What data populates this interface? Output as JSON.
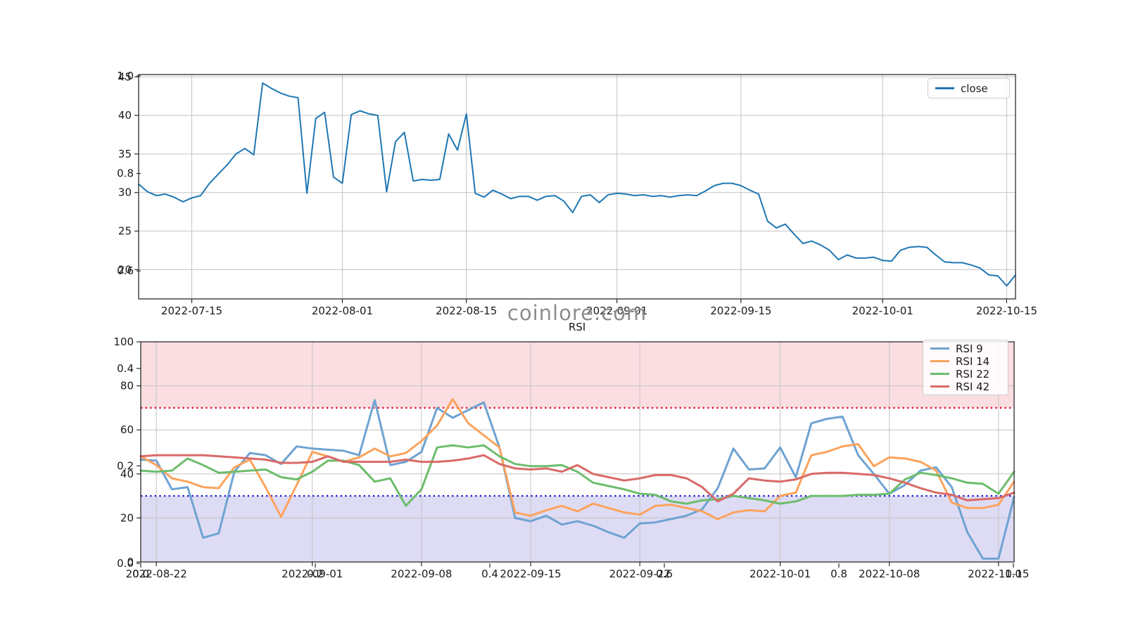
{
  "watermark": {
    "text": "coinlore.com"
  },
  "hidden_axes": {
    "x_tick_labels": [
      "0.0",
      "0.2",
      "0.4",
      "0.6",
      "0.8",
      "1.0"
    ],
    "y_tick_labels": [
      "1.0",
      "0.8",
      "0.6",
      "0.4",
      "0.2",
      "0.0"
    ]
  },
  "chart_data": [
    {
      "type": "line",
      "title": "",
      "xlabel": "",
      "ylabel": "",
      "grid": true,
      "legend_position": "upper right",
      "x_start_date": "2022-07-09",
      "x_tick_labels": [
        "2022-07-15",
        "2022-08-01",
        "2022-08-15",
        "2022-09-01",
        "2022-09-15",
        "2022-10-01",
        "2022-10-15"
      ],
      "y_tick_labels": [
        45,
        40,
        35,
        30,
        25,
        20
      ],
      "ylim": [
        16.2,
        45.3
      ],
      "series": [
        {
          "name": "close",
          "color": "#1f77b4",
          "values": [
            31.1,
            30.1,
            29.6,
            29.8,
            29.4,
            28.8,
            29.3,
            29.6,
            31.2,
            32.4,
            33.6,
            35.0,
            35.7,
            34.9,
            44.2,
            43.5,
            42.9,
            42.5,
            42.3,
            29.9,
            39.6,
            40.4,
            32.0,
            31.2,
            40.1,
            40.6,
            40.2,
            40.0,
            30.1,
            36.6,
            37.8,
            31.5,
            31.7,
            31.6,
            31.7,
            37.6,
            35.5,
            40.2,
            29.9,
            29.4,
            30.3,
            29.8,
            29.2,
            29.5,
            29.5,
            29.0,
            29.5,
            29.6,
            28.9,
            27.4,
            29.5,
            29.7,
            28.7,
            29.7,
            29.9,
            29.8,
            29.6,
            29.7,
            29.5,
            29.6,
            29.4,
            29.6,
            29.7,
            29.6,
            30.2,
            30.9,
            31.2,
            31.2,
            30.9,
            30.3,
            29.8,
            26.3,
            25.4,
            25.9,
            24.6,
            23.4,
            23.7,
            23.2,
            22.5,
            21.3,
            21.9,
            21.5,
            21.5,
            21.6,
            21.2,
            21.1,
            22.5,
            22.9,
            23.0,
            22.9,
            21.9,
            21.0,
            20.9,
            20.9,
            20.6,
            20.2,
            19.3,
            19.2,
            17.9,
            19.3
          ]
        }
      ]
    },
    {
      "type": "line",
      "title": "RSI",
      "xlabel": "",
      "ylabel": "",
      "grid": true,
      "legend_position": "upper right",
      "x_start_date": "2022-08-21",
      "x_tick_labels": [
        "2022-08-22",
        "2022-09-01",
        "2022-09-08",
        "2022-09-15",
        "2022-09-22",
        "2022-10-01",
        "2022-10-08",
        "2022-10-15"
      ],
      "y_tick_labels": [
        100,
        80,
        60,
        40,
        20,
        0
      ],
      "ylim": [
        0,
        100
      ],
      "overbought_level": 70,
      "oversold_level": 30,
      "overbought_band": {
        "range": [
          70,
          100
        ],
        "fill": "#fbdee1",
        "line_color": "#e8001c"
      },
      "oversold_band": {
        "range": [
          0,
          30
        ],
        "fill": "#dedcf4",
        "line_color": "#1212d8"
      },
      "series": [
        {
          "name": "RSI 9",
          "color": "#6fa3d2",
          "values": [
            46.5,
            46,
            33,
            34,
            11,
            13,
            41,
            49.5,
            48.5,
            44.5,
            52.5,
            51.5,
            51,
            50.5,
            48.5,
            73.5,
            44,
            45.5,
            50,
            70,
            65.5,
            69,
            72.5,
            52,
            20,
            18.5,
            21,
            17,
            18.5,
            16.5,
            13.5,
            11,
            17.5,
            18,
            19.5,
            21,
            24,
            33.5,
            51.5,
            42,
            42.5,
            52,
            38.5,
            63,
            65,
            66,
            48.5,
            40,
            31,
            35,
            41.5,
            43,
            34,
            13.5,
            1.5,
            1.5,
            29.5
          ]
        },
        {
          "name": "RSI 14",
          "color": "#fca35d",
          "values": [
            48,
            44,
            38,
            36.5,
            34,
            33.5,
            43,
            46.5,
            34,
            20.5,
            35,
            50,
            48,
            45.5,
            47.5,
            51.5,
            48,
            49.5,
            55,
            62,
            74,
            63,
            57.5,
            52,
            22.5,
            21,
            23.5,
            25.5,
            23,
            26.5,
            24.5,
            22.5,
            21.5,
            25.5,
            26,
            24.5,
            23,
            19.5,
            22.5,
            23.5,
            23,
            30,
            31.5,
            48.5,
            50,
            52.5,
            53.5,
            43.5,
            47.5,
            47,
            45.5,
            41.5,
            27,
            24.5,
            24.5,
            26,
            36.5
          ]
        },
        {
          "name": "RSI 22",
          "color": "#6dbd6d",
          "values": [
            41.5,
            41,
            41.5,
            47,
            44,
            40.5,
            41,
            41.5,
            42,
            38.5,
            37.5,
            41,
            46,
            46,
            44,
            36.5,
            38,
            25.5,
            33,
            52,
            53,
            52,
            53,
            48,
            44.5,
            43.5,
            43.5,
            44,
            41,
            36,
            34.5,
            33,
            31,
            30.5,
            27.5,
            26.5,
            28,
            28.5,
            30,
            29,
            28,
            26.5,
            27.5,
            30,
            30,
            30,
            30.5,
            30.5,
            31,
            37.5,
            40.5,
            39.5,
            38,
            36,
            35.5,
            31,
            41
          ]
        },
        {
          "name": "RSI 42",
          "color": "#d96a68",
          "values": [
            48,
            48.5,
            48.5,
            48.5,
            48.5,
            48,
            47.5,
            47,
            46.5,
            45,
            45,
            45.5,
            48,
            45.5,
            45.5,
            45.5,
            45.5,
            46.5,
            45.5,
            45.5,
            46,
            47,
            48.5,
            44.5,
            42.5,
            42,
            42.5,
            41,
            44,
            40,
            38.5,
            37,
            38,
            39.5,
            39.5,
            38,
            34,
            27.5,
            31,
            38,
            37,
            36.5,
            37.5,
            40,
            40.5,
            40.5,
            40,
            39.5,
            38,
            36,
            33.5,
            31.5,
            30.5,
            28,
            28.5,
            29,
            31.5
          ]
        }
      ]
    }
  ]
}
